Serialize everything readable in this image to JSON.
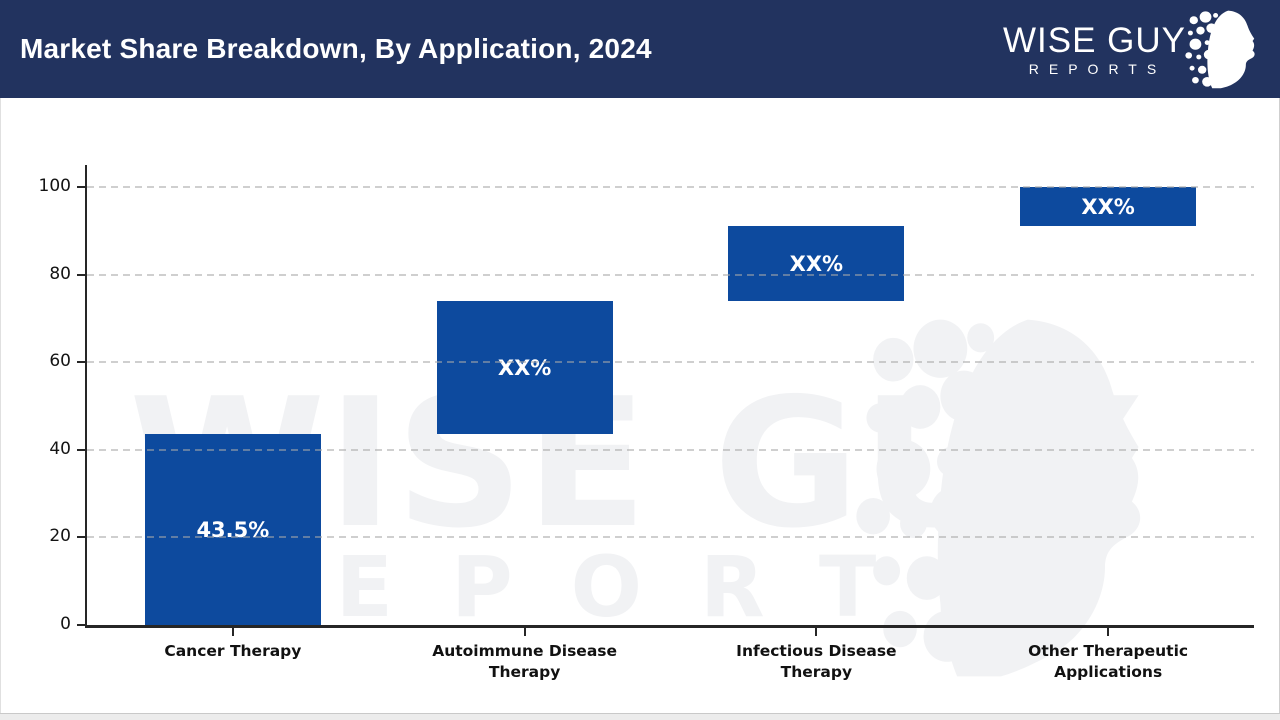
{
  "header": {
    "title": "Market Share Breakdown, By Application, 2024",
    "bg_color": "#22335f",
    "logo": {
      "wordmark": "WISE GUY",
      "subtext": "REPORTS",
      "face_icon": "face-profile-dots"
    }
  },
  "watermark": {
    "wordmark": "WISE GUY",
    "subtext": "REPORTS",
    "color": "#f1f2f4"
  },
  "chart_data": {
    "type": "bar",
    "subtype": "waterfall-floating-segments",
    "title": "Market Share Breakdown, By Application, 2024",
    "xlabel": "",
    "ylabel": "",
    "ylim": [
      0,
      105
    ],
    "yticks": [
      0,
      20,
      40,
      60,
      80,
      100
    ],
    "grid": "horizontal-dashed",
    "legend": "none",
    "bar_color": "#0d4a9e",
    "bar_label_color": "#ffffff",
    "categories": [
      {
        "name": "Cancer Therapy",
        "lines": [
          "Cancer Therapy"
        ]
      },
      {
        "name": "Autoimmune Disease Therapy",
        "lines": [
          "Autoimmune Disease",
          "Therapy"
        ]
      },
      {
        "name": "Infectious Disease Therapy",
        "lines": [
          "Infectious Disease",
          "Therapy"
        ]
      },
      {
        "name": "Other Therapeutic Applications",
        "lines": [
          "Other Therapeutic",
          "Applications"
        ]
      }
    ],
    "segments": [
      {
        "category": "Cancer Therapy",
        "from": 0,
        "to": 43.5,
        "label": "43.5%"
      },
      {
        "category": "Autoimmune Disease Therapy",
        "from": 43.5,
        "to": 74,
        "label": "XX%"
      },
      {
        "category": "Infectious Disease Therapy",
        "from": 74,
        "to": 91,
        "label": "XX%"
      },
      {
        "category": "Other Therapeutic Applications",
        "from": 91,
        "to": 100,
        "label": "XX%"
      }
    ],
    "axis_color": "#262626",
    "gridline_color": "#d9d9d9"
  }
}
